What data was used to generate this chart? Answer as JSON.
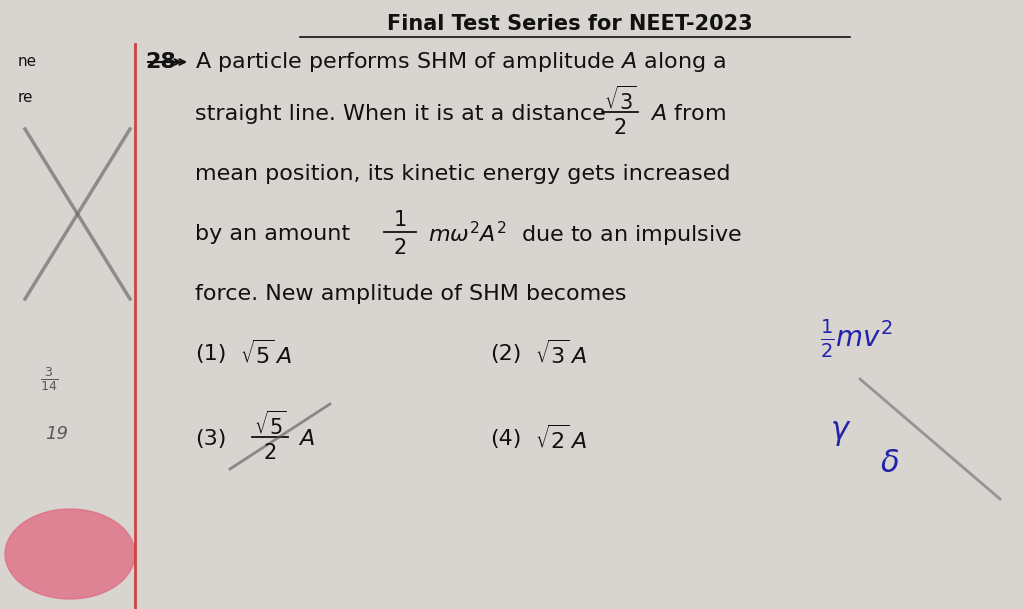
{
  "title": "Final Test Series for NEET-2023",
  "background_color": "#d8d5d0",
  "text_color": "#111111",
  "margin_line_color": "#cc4444",
  "side_texts": [
    "ne",
    "re"
  ],
  "q_number": "28",
  "line1": "A particle performs SHM of amplitude $A$ along a",
  "line2_part1": "straight line. When it is at a distance",
  "line2_frac_num": "$\\sqrt{3}$",
  "line2_frac_den": "2",
  "line2_part2": "$A$ from",
  "line3": "mean position, its kinetic energy gets increased",
  "line4_part1": "by an amount",
  "line4_frac_num": "1",
  "line4_frac_den": "2",
  "line4_part2": "$m\\omega^2 A^2$  due to an impulsive",
  "line5": "force. New amplitude of SHM becomes",
  "opt1_label": "(1)",
  "opt1_val": "$\\sqrt{5}\\,A$",
  "opt2_label": "(2)",
  "opt2_val": "$\\sqrt{3}\\,A$",
  "opt3_label": "(3)",
  "opt3_frac_num": "$\\sqrt{5}$",
  "opt3_frac_den": "2",
  "opt3_val_suffix": "$A$",
  "opt4_label": "(4)",
  "opt4_val": "$\\sqrt{2}\\,A$",
  "hw_text1": "$\\frac{1}{2}mv^2$",
  "hw_text2": "$\\gamma$",
  "hw_text3": "$\\delta$",
  "title_fontsize": 15,
  "body_fontsize": 16,
  "opt_fontsize": 16
}
